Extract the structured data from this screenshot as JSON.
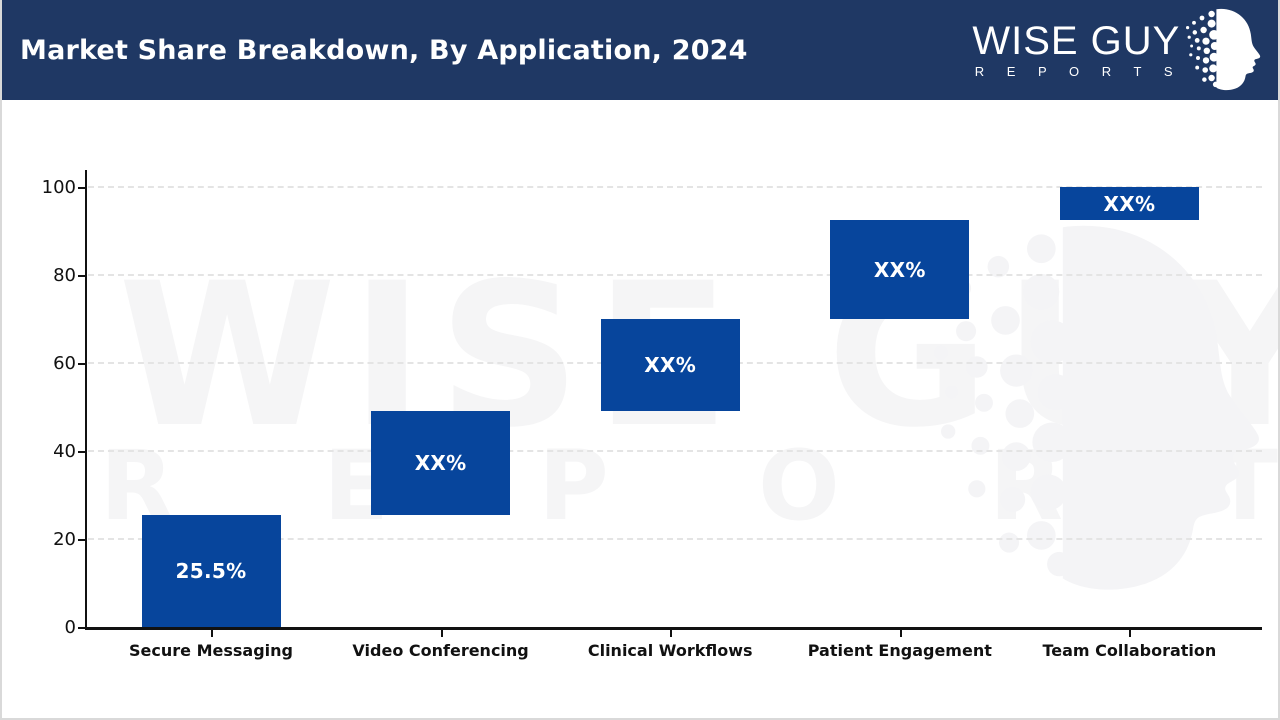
{
  "colors": {
    "header_bg": "#1f3864",
    "bar": "#07459c",
    "grid": "#e4e4e4",
    "axis": "#111111",
    "bar_label": "#ffffff",
    "watermark": "#f5f5f6"
  },
  "header": {
    "title": "Market Share Breakdown, By Application, 2024",
    "logo": {
      "line1": "WISE GUY",
      "line2": "R E P O R T S"
    }
  },
  "watermark": {
    "line1": "WISE GUY",
    "line2": "R E P O R T S"
  },
  "chart_data": {
    "type": "bar",
    "subtype": "floating-waterfall",
    "title": "Market Share Breakdown, By Application, 2024",
    "categories": [
      "Secure Messaging",
      "Video Conferencing",
      "Clinical Workflows",
      "Patient Engagement",
      "Team Collaboration"
    ],
    "segments": [
      {
        "category": "Secure Messaging",
        "start": 0,
        "end": 25.5,
        "label": "25.5%"
      },
      {
        "category": "Video Conferencing",
        "start": 25.5,
        "end": 49,
        "label": "XX%"
      },
      {
        "category": "Clinical Workflows",
        "start": 49,
        "end": 70,
        "label": "XX%"
      },
      {
        "category": "Patient Engagement",
        "start": 70,
        "end": 92.5,
        "label": "XX%"
      },
      {
        "category": "Team Collaboration",
        "start": 92.5,
        "end": 100,
        "label": "XX%"
      }
    ],
    "y_ticks": [
      0,
      20,
      40,
      60,
      80,
      100
    ],
    "ylim": [
      0,
      105
    ],
    "xlabel": "",
    "ylabel": "",
    "grid": "horizontal-dashed",
    "legend": "none"
  }
}
